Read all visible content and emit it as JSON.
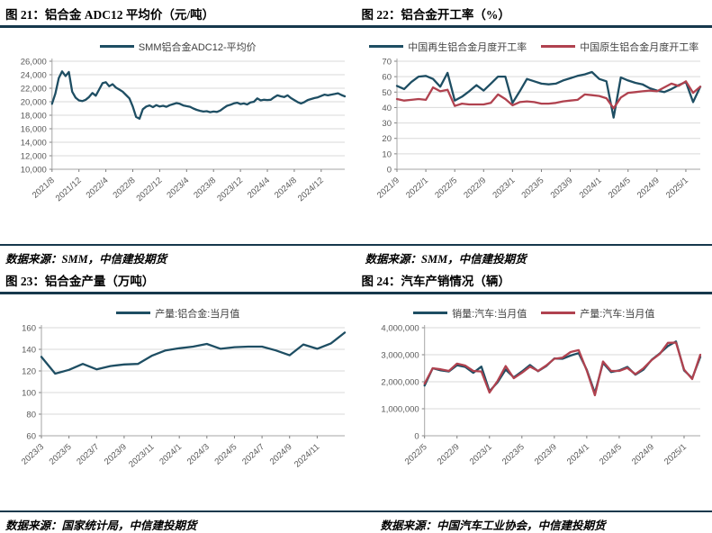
{
  "styles": {
    "rule_color": "#16384c",
    "grid_color": "#d9d9d9",
    "axis_color": "#a6a6a6",
    "tick_color": "#7f7f7f",
    "axis_label_color": "#595959",
    "blue": "#1e4e63",
    "red": "#b0424f"
  },
  "figures": [
    {
      "title": "图 21：铝合金 ADC12 平均价（元/吨）",
      "source": "数据来源：SMM，中信建投期货",
      "legend": [
        {
          "label": "SMM铝合金ADC12-平均价",
          "color": "#1e4e63"
        }
      ]
    },
    {
      "title": "图 22：铝合金开工率（%）",
      "source": "数据来源：SMM，中信建投期货",
      "legend": [
        {
          "label": "中国再生铝合金月度开工率",
          "color": "#1e4e63"
        },
        {
          "label": "中国原生铝合金月度开工率",
          "color": "#b0424f"
        }
      ]
    },
    {
      "title": "图 23：铝合金产量（万吨）",
      "source": "数据来源：国家统计局，中信建投期货",
      "legend": [
        {
          "label": "产量:铝合金:当月值",
          "color": "#1e4e63"
        }
      ]
    },
    {
      "title": "图 24：汽车产销情况（辆）",
      "source": "数据来源：中国汽车工业协会，中信建投期货",
      "legend": [
        {
          "label": "销量:汽车:当月值",
          "color": "#1e4e63"
        },
        {
          "label": "产量:汽车:当月值",
          "color": "#b0424f"
        }
      ]
    }
  ],
  "chart_data": [
    {
      "type": "line",
      "title": "铝合金 ADC12 平均价（元/吨）",
      "ylim": [
        10000,
        26000
      ],
      "y_step": 2000,
      "y_comma": true,
      "grid": true,
      "months_total": 43.5,
      "point_step_months": 0.5,
      "x_ticks": {
        "labels": [
          "2021/8",
          "2021/12",
          "2022/4",
          "2022/8",
          "2022/12",
          "2023/4",
          "2023/8",
          "2023/12",
          "2024/4",
          "2024/8",
          "2024/12"
        ],
        "months": [
          0,
          4,
          8,
          12,
          16,
          20,
          24,
          28,
          32,
          36,
          40
        ]
      },
      "series": [
        {
          "name": "SMM铝合金ADC12-平均价",
          "color": "#1e4e63",
          "values": [
            19700,
            21200,
            23500,
            24500,
            23800,
            24400,
            21500,
            20600,
            20200,
            20100,
            20300,
            20700,
            21300,
            20900,
            21800,
            22750,
            22900,
            22300,
            22600,
            22100,
            21800,
            21500,
            21000,
            20500,
            19300,
            17750,
            17500,
            18900,
            19300,
            19450,
            19200,
            19500,
            19300,
            19400,
            19250,
            19500,
            19650,
            19800,
            19700,
            19450,
            19350,
            19250,
            19000,
            18800,
            18650,
            18550,
            18600,
            18450,
            18550,
            18500,
            18700,
            19050,
            19400,
            19550,
            19750,
            19850,
            19650,
            19750,
            19600,
            19900,
            20000,
            20500,
            20200,
            20300,
            20250,
            20300,
            20650,
            20950,
            20800,
            20700,
            20950,
            20550,
            20250,
            19950,
            19750,
            19950,
            20250,
            20400,
            20550,
            20650,
            20850,
            21050,
            20950,
            21050,
            21150,
            21250,
            21000,
            20800
          ]
        }
      ]
    },
    {
      "type": "line",
      "title": "铝合金开工率（%）",
      "ylim": [
        0,
        70
      ],
      "y_step": 10,
      "y_comma": false,
      "grid": true,
      "months_total": 42,
      "point_step_months": 1,
      "x_ticks": {
        "labels": [
          "2021/9",
          "2022/1",
          "2022/5",
          "2022/9",
          "2023/1",
          "2023/5",
          "2023/9",
          "2024/1",
          "2024/5",
          "2024/9",
          "2025/1"
        ],
        "months": [
          0,
          4,
          8,
          12,
          16,
          20,
          24,
          28,
          32,
          36,
          40
        ]
      },
      "series": [
        {
          "name": "中国再生铝合金月度开工率",
          "color": "#1e4e63",
          "values": [
            54,
            52,
            56.5,
            60,
            60.5,
            58.5,
            53.5,
            62.5,
            44.5,
            47,
            50.5,
            54.5,
            51,
            55.5,
            60,
            60,
            43,
            50.5,
            58.5,
            57,
            55.5,
            55,
            55.5,
            57.5,
            59,
            60.5,
            61.5,
            63,
            58.5,
            57,
            33.5,
            59.5,
            57.5,
            56,
            55,
            52.5,
            51,
            50,
            52,
            54.5,
            56.5,
            43.5,
            53.5
          ]
        },
        {
          "name": "中国原生铝合金月度开工率",
          "color": "#b0424f",
          "values": [
            45.5,
            44.5,
            45,
            45.5,
            45,
            53,
            50.5,
            51.5,
            41,
            42.5,
            42,
            42,
            42,
            43,
            48.5,
            45.5,
            41.5,
            43.5,
            44,
            43.5,
            42.5,
            42.5,
            43,
            44,
            44.5,
            45,
            48.5,
            48,
            47.5,
            46,
            39.5,
            46.5,
            49.5,
            50,
            50.5,
            51,
            50.5,
            53,
            55.5,
            54,
            57,
            49.5,
            53.5
          ]
        }
      ]
    },
    {
      "type": "line",
      "title": "铝合金产量（万吨）",
      "ylim": [
        60,
        160
      ],
      "y_step": 20,
      "y_comma": false,
      "grid": true,
      "months_total": 22,
      "point_step_months": 1,
      "x_ticks": {
        "labels": [
          "2023/3",
          "2023/5",
          "2023/7",
          "2023/9",
          "2023/11",
          "2024/1",
          "2024/3",
          "2024/5",
          "2024/7",
          "2024/9",
          "2024/11"
        ],
        "months": [
          0,
          2,
          4,
          6,
          8,
          10,
          12,
          14,
          16,
          18,
          20
        ]
      },
      "series": [
        {
          "name": "产量:铝合金:当月值",
          "color": "#1e4e63",
          "values": [
            133,
            117.5,
            121,
            126.5,
            121.5,
            124.5,
            126,
            126.5,
            134,
            139,
            141,
            142.5,
            145,
            140.5,
            142,
            142.5,
            142.5,
            139,
            134.5,
            144.5,
            140.5,
            145.5,
            155.5
          ]
        }
      ]
    },
    {
      "type": "line",
      "title": "汽车产销情况（辆）",
      "ylim": [
        0,
        4000000
      ],
      "y_step": 1000000,
      "y_comma": true,
      "grid": true,
      "months_total": 34,
      "point_step_months": 1,
      "x_ticks": {
        "labels": [
          "2022/5",
          "2022/9",
          "2023/1",
          "2023/5",
          "2023/9",
          "2024/1",
          "2024/5",
          "2024/9",
          "2025/1"
        ],
        "months": [
          0,
          4,
          8,
          12,
          16,
          20,
          24,
          28,
          32
        ]
      },
      "series": [
        {
          "name": "销量:汽车:当月值",
          "color": "#1e4e63",
          "values": [
            1860000,
            2500000,
            2420000,
            2380000,
            2610000,
            2550000,
            2330000,
            2560000,
            1650000,
            1980000,
            2450000,
            2160000,
            2380000,
            2620000,
            2390000,
            2580000,
            2860000,
            2850000,
            2970000,
            3060000,
            2440000,
            1580000,
            2700000,
            2360000,
            2420000,
            2550000,
            2260000,
            2450000,
            2810000,
            3050000,
            3320000,
            3490000,
            2420000,
            2130000,
            2920000
          ]
        },
        {
          "name": "产量:汽车:当月值",
          "color": "#b0424f",
          "values": [
            1930000,
            2500000,
            2460000,
            2400000,
            2670000,
            2600000,
            2400000,
            2380000,
            1600000,
            2030000,
            2580000,
            2130000,
            2330000,
            2560000,
            2400000,
            2600000,
            2850000,
            2890000,
            3100000,
            3170000,
            2410000,
            1500000,
            2750000,
            2400000,
            2400000,
            2510000,
            2280000,
            2500000,
            2800000,
            3030000,
            3440000,
            3450000,
            2450000,
            2100000,
            3000000
          ]
        }
      ]
    }
  ]
}
